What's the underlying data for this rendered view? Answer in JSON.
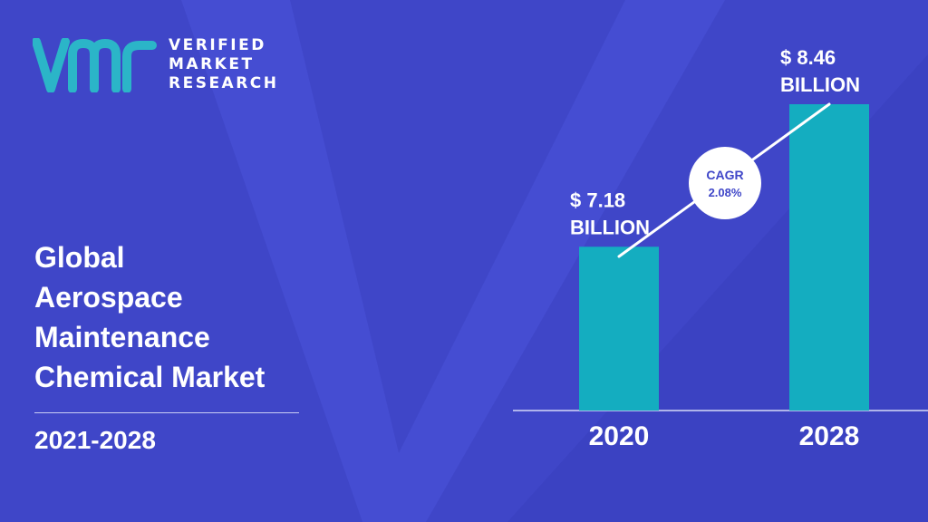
{
  "brand": {
    "lines": [
      "VERIFIED",
      "MARKET",
      "RESEARCH"
    ],
    "logo_icon": "vmr-logo-icon",
    "logo_color": "#2bb5c8"
  },
  "headline": {
    "lines": [
      "Global",
      "Aerospace",
      "Maintenance",
      "Chemical Market"
    ],
    "period": "2021-2028"
  },
  "colors": {
    "background": "#3f46c8",
    "bar": "#14adc0",
    "badge_text": "#3f46c8"
  },
  "chart_data": {
    "type": "bar",
    "categories": [
      "2020",
      "2028"
    ],
    "values": [
      7.18,
      8.46
    ],
    "value_labels": [
      [
        "$ 7.18",
        "BILLION"
      ],
      [
        "$ 8.46",
        "BILLION"
      ]
    ],
    "annotation": {
      "line1": "CAGR",
      "line2": "2.08%"
    },
    "title": "",
    "xlabel": "",
    "ylabel": "",
    "grid": false
  }
}
